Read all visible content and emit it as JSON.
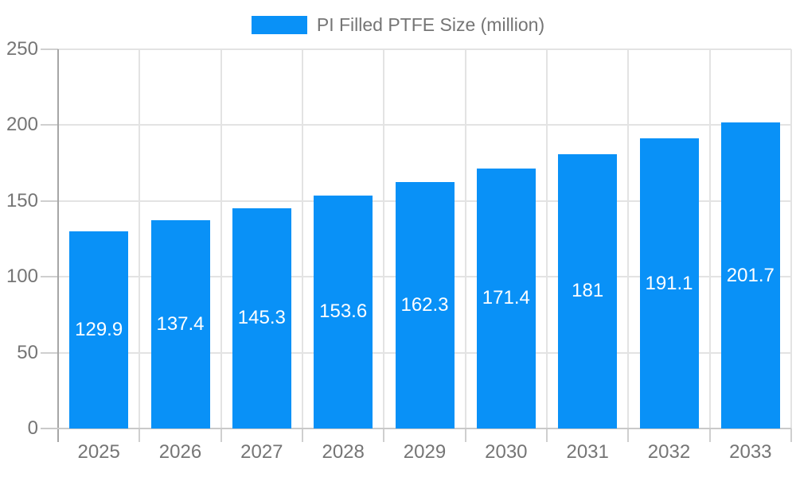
{
  "chart_data": {
    "type": "bar",
    "series_name": "PI Filled PTFE Size (million)",
    "categories": [
      "2025",
      "2026",
      "2027",
      "2028",
      "2029",
      "2030",
      "2031",
      "2032",
      "2033"
    ],
    "values": [
      129.9,
      137.4,
      145.3,
      153.6,
      162.3,
      171.4,
      181,
      191.1,
      201.7
    ],
    "value_labels": [
      "129.9",
      "137.4",
      "145.3",
      "153.6",
      "162.3",
      "171.4",
      "181",
      "191.1",
      "201.7"
    ],
    "xlabel": "",
    "ylabel": "",
    "ylim": [
      0,
      250
    ],
    "y_ticks": [
      0,
      50,
      100,
      150,
      200,
      250
    ],
    "grid": true,
    "legend_position": "top",
    "value_label_position": "center",
    "colors": {
      "bar": "#0991f7",
      "axis_label": "#757575",
      "bar_label": "#ffffff",
      "gridline": "#e3e3e3",
      "y_axis_line": "#a6a6a6",
      "x_axis_line": "#c9c9c9",
      "tick": "#cfcfcf"
    }
  }
}
